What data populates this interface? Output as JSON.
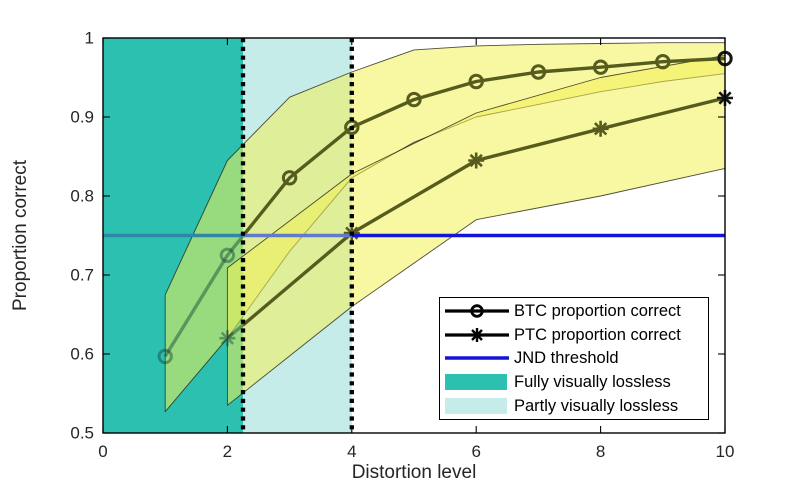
{
  "chart_data": {
    "type": "line",
    "xlabel": "Distortion level",
    "ylabel": "Proportion correct",
    "xlim": [
      0,
      10
    ],
    "ylim": [
      0.5,
      1
    ],
    "xticks": [
      0,
      2,
      4,
      6,
      8,
      10
    ],
    "xtick_labels": [
      "0",
      "2",
      "4",
      "6",
      "8",
      "10"
    ],
    "yticks": [
      0.5,
      0.6,
      0.7,
      0.8,
      0.9,
      1
    ],
    "ytick_labels": [
      "0.5",
      "0.6",
      "0.7",
      "0.8",
      "0.9",
      "1"
    ],
    "series": [
      {
        "name": "BTC proportion correct",
        "marker": "circle",
        "x": [
          1,
          2,
          3,
          4,
          5,
          6,
          7,
          8,
          9,
          10
        ],
        "y": [
          0.597,
          0.725,
          0.823,
          0.887,
          0.922,
          0.945,
          0.957,
          0.963,
          0.97,
          0.974
        ],
        "band": {
          "x": [
            1,
            2,
            3,
            4,
            5,
            6,
            7,
            8,
            9,
            10
          ],
          "upper": [
            0.675,
            0.845,
            0.925,
            0.957,
            0.985,
            0.99,
            0.992,
            0.993,
            0.994,
            0.994
          ],
          "lower": [
            0.527,
            0.62,
            0.73,
            0.823,
            0.868,
            0.9,
            0.916,
            0.932,
            0.945,
            0.955
          ]
        }
      },
      {
        "name": "PTC proportion correct",
        "marker": "asterisk",
        "x": [
          2,
          4,
          6,
          8,
          10
        ],
        "y": [
          0.62,
          0.753,
          0.845,
          0.885,
          0.924
        ],
        "band": {
          "x": [
            2,
            4,
            6,
            8,
            10
          ],
          "upper": [
            0.709,
            0.828,
            0.905,
            0.95,
            0.978
          ],
          "lower": [
            0.535,
            0.66,
            0.77,
            0.8,
            0.835
          ]
        }
      }
    ],
    "jnd": {
      "label": "JND threshold",
      "value": 0.75
    },
    "regions": [
      {
        "label": "Fully visually lossless",
        "x0": 0,
        "x1": 2.25,
        "color": "#2CC0B1"
      },
      {
        "label": "Partly visually lossless",
        "x0": 2.25,
        "x1": 4,
        "color": "#C6ECEA"
      }
    ],
    "legend": [
      {
        "label": "BTC proportion correct"
      },
      {
        "label": "PTC proportion correct"
      },
      {
        "label": "JND threshold"
      },
      {
        "label": "Fully visually lossless"
      },
      {
        "label": "Partly visually lossless"
      }
    ],
    "colors": {
      "curve": "#555C1D",
      "curve_black": "#161616",
      "curve_ghost": "rgba(15,65,50,0.45)",
      "band_fill": "rgba(242,240,85,0.55)",
      "band_edge": "rgba(35,35,20,0.8)",
      "jnd": "#1414D8",
      "jnd_over_fully": "#2E86A8",
      "jnd_over_partly": "#6379CC",
      "boundary_line": "#000000",
      "axis": "#000000",
      "tick_text": "#262626"
    },
    "legend_position": "lower right",
    "grid": false
  }
}
